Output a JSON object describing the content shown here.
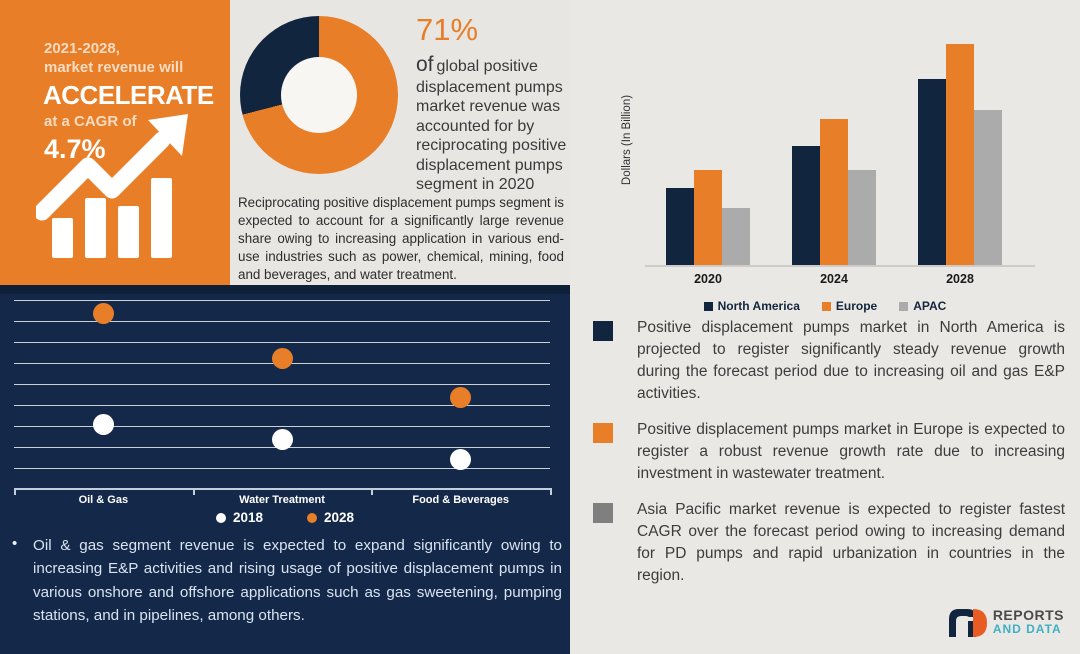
{
  "colors": {
    "orange": "#E87E27",
    "navy": "#12253E",
    "navy_panel": "#14294A",
    "bar_gray": "#ABABAB",
    "bullet_gray": "#7F7F7F",
    "white": "#FFFFFF",
    "logo_teal": "#3FB0C4"
  },
  "cagr_panel": {
    "line1": "2021-2028,",
    "line2": "market revenue will",
    "emphasis": "ACCELERATE",
    "line3": "at a CAGR of",
    "value": "4.7%"
  },
  "donut_panel": {
    "stat_value": "71%",
    "stat_lead": "of",
    "stat_text": "global positive displacement pumps market revenue was accounted for by reciprocating positive displacement pumps segment in 2020",
    "paragraph": "Reciprocating positive displacement pumps segment is expected to account for a significantly large revenue share owing to increasing application in various end-use industries such as power, chemical, mining, food and beverages, and water treatment."
  },
  "chart_data": [
    {
      "id": "reciprocating-share-donut",
      "type": "pie",
      "donut": true,
      "labels": [
        "Reciprocating positive displacement pumps (2020 share)",
        "Other positive displacement pumps"
      ],
      "values": [
        71,
        29
      ],
      "colors": [
        "#E87E27",
        "#12253E"
      ],
      "annotation": "71%"
    },
    {
      "id": "regional-revenue-bars",
      "type": "bar",
      "ylabel": "Dollars (In Billion)",
      "categories": [
        "2020",
        "2024",
        "2028"
      ],
      "series": [
        {
          "name": "North America",
          "color": "#12253E",
          "values": [
            3.5,
            5.4,
            8.4
          ]
        },
        {
          "name": "Europe",
          "color": "#E87E27",
          "values": [
            4.3,
            6.6,
            10.0
          ]
        },
        {
          "name": "APAC",
          "color": "#ABABAB",
          "values": [
            2.6,
            4.3,
            7.0
          ]
        }
      ],
      "ylim": [
        0,
        10.5
      ],
      "grid": false,
      "legend_position": "bottom",
      "note": "No numeric y-tick labels shown; values are relative units estimated from bar heights."
    },
    {
      "id": "segment-revenue-dot-plot",
      "type": "scatter",
      "categories": [
        "Oil & Gas",
        "Water Treatment",
        "Food & Beverages"
      ],
      "series": [
        {
          "name": "2018",
          "color": "#FFFFFF",
          "values": [
            3.4,
            2.6,
            1.5
          ]
        },
        {
          "name": "2028",
          "color": "#E87E27",
          "values": [
            9.3,
            6.9,
            4.8
          ]
        }
      ],
      "ylim": [
        0,
        10
      ],
      "gridline_count": 9,
      "grid": true,
      "legend_position": "bottom",
      "note": "No numeric y-axis shown; values are relative units estimated from dot positions."
    }
  ],
  "navy_panel": {
    "bullet": "Oil & gas segment revenue is expected to expand significantly owing to increasing E&P activities and rising usage of positive displacement pumps in various onshore and offshore applications such as gas sweetening, pumping stations, and in pipelines, among others."
  },
  "right_panel": {
    "bullets": [
      {
        "color": "#12253E",
        "text": "Positive displacement pumps market in North America is projected to register significantly steady revenue growth during the forecast period due to increasing oil and gas E&P activities."
      },
      {
        "color": "#E87E27",
        "text": "Positive displacement pumps market in Europe is expected to register a robust revenue growth rate due to increasing investment in wastewater treatment."
      },
      {
        "color": "#7F7F7F",
        "text": "Asia Pacific market revenue is expected to register fastest CAGR over the forecast period owing to increasing demand for PD pumps and rapid urbanization in countries in the region."
      }
    ],
    "logo": {
      "line1": "REPORTS",
      "line2": "AND DATA"
    }
  }
}
